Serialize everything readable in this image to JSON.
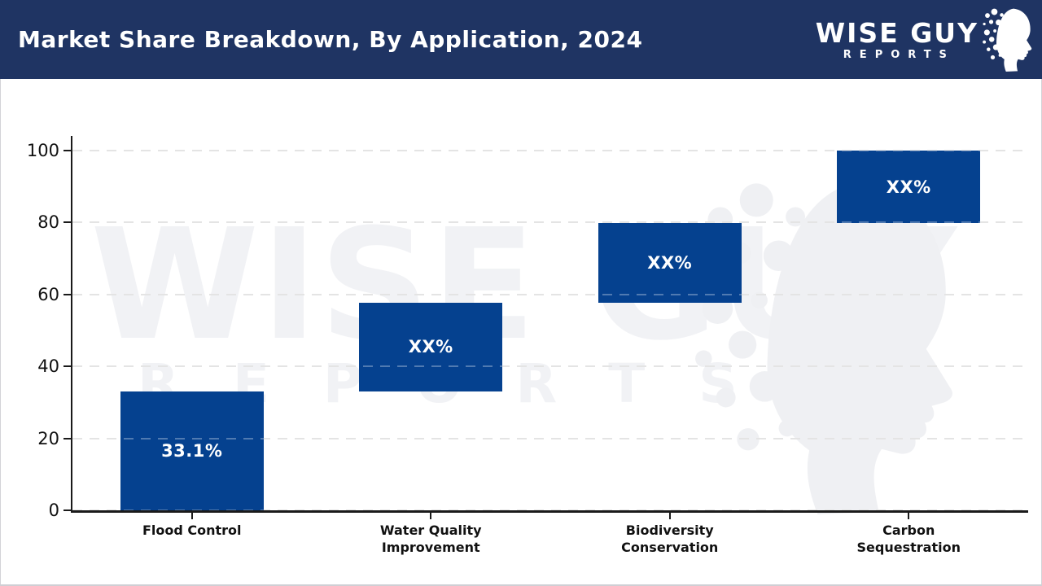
{
  "header": {
    "title": "Market Share Breakdown, By Application, 2024",
    "brand": {
      "name": "WISE GUY",
      "tagline": "REPORTS"
    }
  },
  "watermark": {
    "name": "WISE GUY",
    "tagline": "REPORTS"
  },
  "chart_data": {
    "type": "bar",
    "subtype": "waterfall",
    "title": "Market Share Breakdown, By Application, 2024",
    "categories": [
      [
        "Flood Control"
      ],
      [
        "Water Quality",
        "Improvement"
      ],
      [
        "Biodiversity",
        "Conservation"
      ],
      [
        "Carbon",
        "Sequestration"
      ]
    ],
    "segments": [
      {
        "category": "Flood Control",
        "start": 0,
        "end": 33.1,
        "label": "33.1%"
      },
      {
        "category": "Water Quality Improvement",
        "start": 33.1,
        "end": 57.7,
        "label": "XX%"
      },
      {
        "category": "Biodiversity Conservation",
        "start": 57.7,
        "end": 79.8,
        "label": "XX%"
      },
      {
        "category": "Carbon Sequestration",
        "start": 79.8,
        "end": 100,
        "label": "XX%"
      }
    ],
    "yticks": [
      0,
      20,
      40,
      60,
      80,
      100
    ],
    "ylim": [
      0,
      100
    ],
    "grid": true,
    "legend_position": "none",
    "colors": {
      "bar": "#05418f",
      "bar_label": "#ffffff",
      "grid": "#d9d9d9",
      "axis": "#1a1a1a",
      "header_bg": "#1f3463",
      "watermark": "#f1f2f5"
    }
  }
}
